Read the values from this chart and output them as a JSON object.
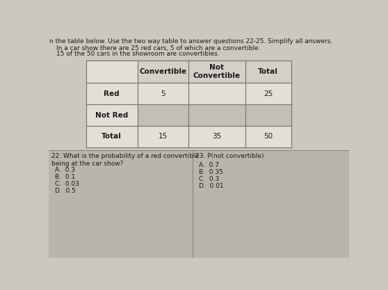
{
  "title_line": "n the table below. Use the two way table to answer questions 22-25. Simplify all answers.",
  "desc_line1": "In a car show there are 25 red cars, 5 of which are a convertible.",
  "desc_line2": "15 of the 50 cars in the showroom are convertibles.",
  "table_headers": [
    "",
    "Convertible",
    "Not\nConvertible",
    "Total"
  ],
  "table_rows": [
    [
      "Red",
      "5",
      "",
      "25"
    ],
    [
      "Not Red",
      "",
      "",
      ""
    ],
    [
      "Total",
      "15",
      "35",
      "50"
    ]
  ],
  "q22_title": "22. What is the probability of a red convertible\nbeing at the car show?",
  "q22_options": [
    "A.  0.3",
    "B.  0.1",
    "C.  0.03",
    "D.  0.5"
  ],
  "q23_title": "23. P(not convertible)",
  "q23_options": [
    "A.  0.7",
    "B.  0.35",
    "C.  0.3",
    "D.  0.01"
  ],
  "page_bg": "#cbc8bf",
  "table_bg_light": "#e2dfd6",
  "table_bg_header": "#d4d0c8",
  "table_bg_notred": "#c2bfb6",
  "text_color": "#1a1a1a",
  "border_color": "#7a7870",
  "bottom_bg": "#b8b5ac",
  "bottom_line_color": "#888580"
}
